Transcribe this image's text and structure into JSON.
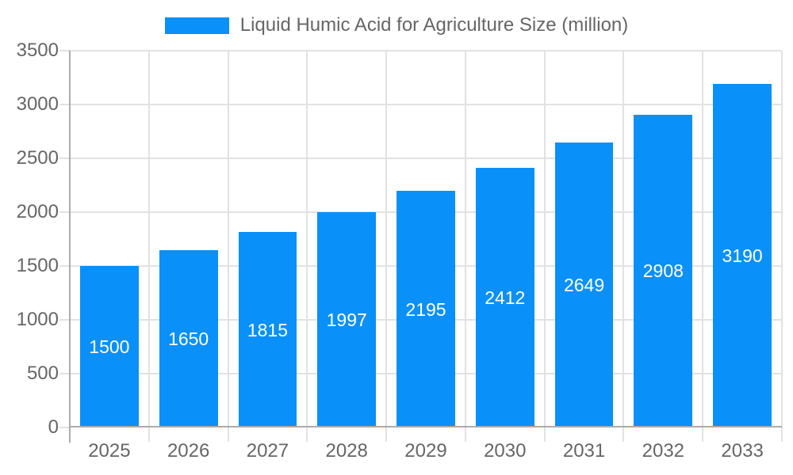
{
  "chart_data": {
    "type": "bar",
    "title": "Liquid Humic Acid for Agriculture Size (million)",
    "categories": [
      "2025",
      "2026",
      "2027",
      "2028",
      "2029",
      "2030",
      "2031",
      "2032",
      "2033"
    ],
    "values": [
      1500,
      1650,
      1815,
      1997,
      2195,
      2412,
      2649,
      2908,
      3190
    ],
    "series": [
      {
        "name": "Liquid Humic Acid for Agriculture Size (million)",
        "values": [
          1500,
          1650,
          1815,
          1997,
          2195,
          2412,
          2649,
          2908,
          3190
        ]
      }
    ],
    "xlabel": "",
    "ylabel": "",
    "ylim": [
      0,
      3500
    ],
    "yticks": [
      0,
      500,
      1000,
      1500,
      2000,
      2500,
      3000,
      3500
    ],
    "grid": true,
    "legend_position": "top",
    "bar_label_position": "inside-center",
    "colors": {
      "bar": "#0990f9",
      "bar_label": "#ffffff",
      "axis": "#ababab",
      "grid": "#e2e2e2",
      "text": "#666666",
      "background": "#ffffff"
    }
  }
}
